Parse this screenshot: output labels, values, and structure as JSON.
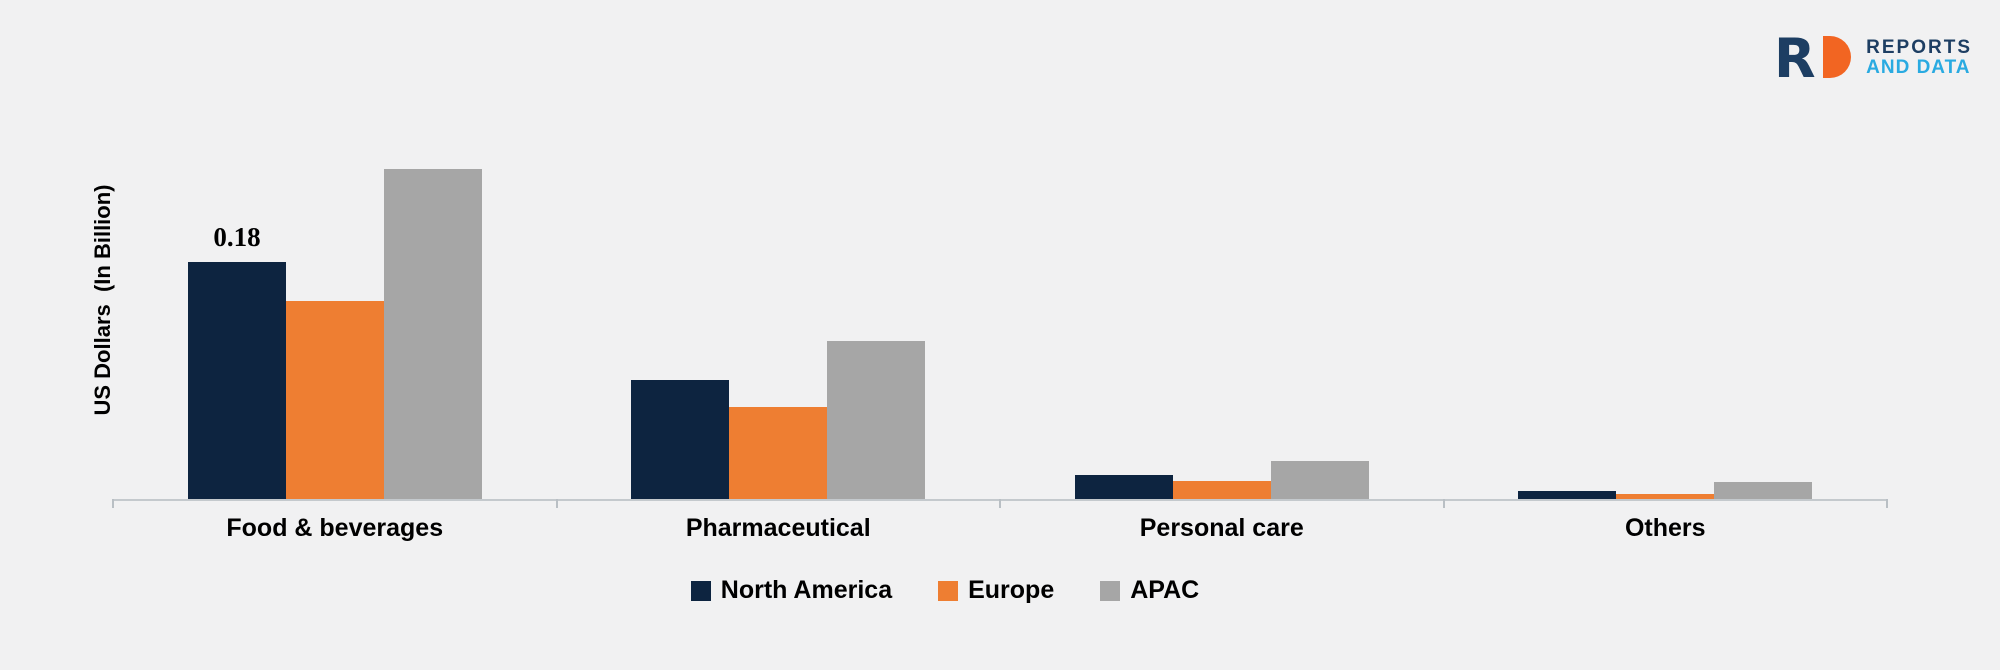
{
  "page": {
    "background_color": "#f1f1f2"
  },
  "logo": {
    "mark_r": "R",
    "mark_d": "D",
    "line1": "REPORTS",
    "line2": "AND DATA",
    "navy_color": "#1d3e63",
    "orange_color": "#f26522",
    "blue_color": "#29aae1"
  },
  "chart_data": {
    "type": "bar",
    "title": "",
    "xlabel": "",
    "ylabel": "US Dollars  (In Billion)",
    "categories": [
      "Food & beverages",
      "Pharmaceutical",
      "Personal care",
      "Others"
    ],
    "series": [
      {
        "name": "North America",
        "color": "#0d2440",
        "values": [
          0.18,
          0.09,
          0.018,
          0.006
        ]
      },
      {
        "name": "Europe",
        "color": "#ee7e32",
        "values": [
          0.15,
          0.07,
          0.014,
          0.004
        ]
      },
      {
        "name": "APAC",
        "color": "#a6a6a6",
        "values": [
          0.25,
          0.12,
          0.029,
          0.013
        ]
      }
    ],
    "data_labels": [
      {
        "series_index": 0,
        "category_index": 0,
        "text": "0.18"
      }
    ],
    "ylim": [
      0,
      0.27
    ],
    "grid": false,
    "y_axis_tick_labels_visible": false,
    "legend_position": "bottom",
    "axis_color": "#c4c9cd"
  }
}
